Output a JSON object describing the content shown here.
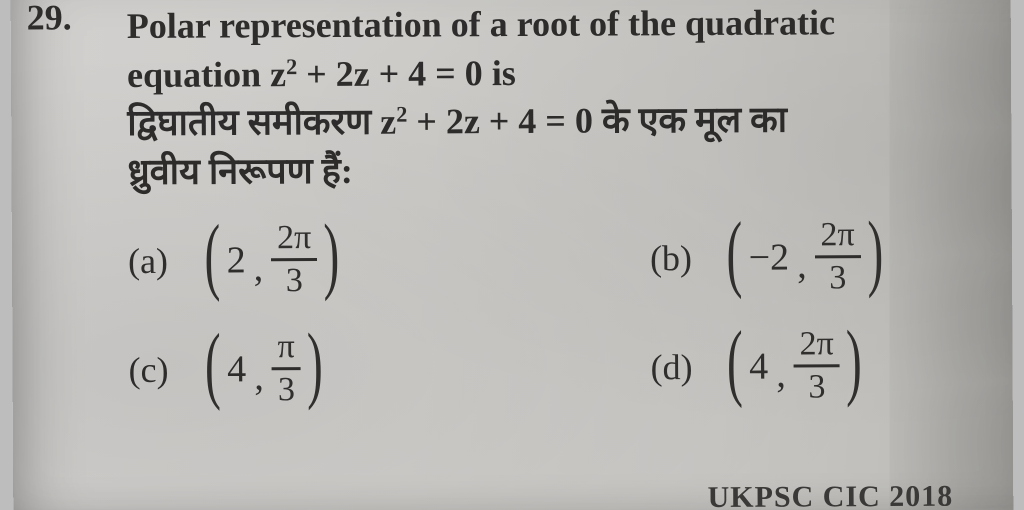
{
  "question_number": "29.",
  "line1_a": "Polar representation of a root of the quadratic",
  "line2_prefix": "equation ",
  "equation_lhs_a": "z",
  "equation_exp": "2",
  "equation_rest": " + 2z + 4 = 0",
  "line2_suffix": " is",
  "line3_prefix": "द्विघातीय समीकरण ",
  "line3_suffix": " के एक मूल का",
  "line4": "ध्रुवीय निरूपण हैं:",
  "options": {
    "a": {
      "label": "(a)",
      "first": "2",
      "num": "2π",
      "den": "3"
    },
    "b": {
      "label": "(b)",
      "first": "−2",
      "num": "2π",
      "den": "3"
    },
    "c": {
      "label": "(c)",
      "first": "4",
      "num": "π",
      "den": "3"
    },
    "d": {
      "label": "(d)",
      "first": "4",
      "num": "2π",
      "den": "3"
    }
  },
  "footer": "UKPSC CIC 2018",
  "colors": {
    "page_bg": "#cfcdca",
    "text": "#2e2d2c"
  }
}
